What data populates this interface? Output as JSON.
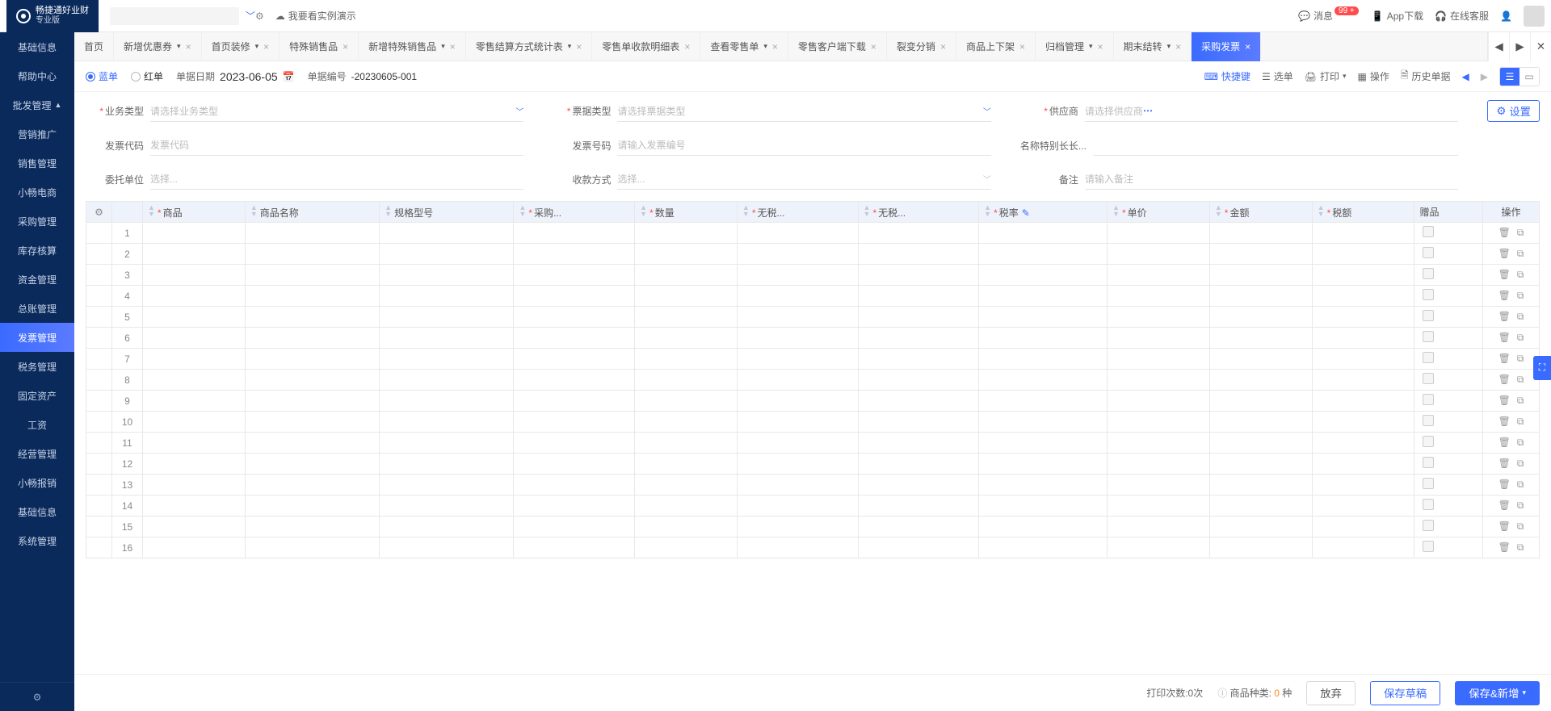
{
  "brand": {
    "name": "畅捷通好业财",
    "edition": "专业版"
  },
  "header": {
    "demo": "我要看实例演示",
    "msg": "消息",
    "msg_badge": "99 +",
    "app": "App下载",
    "cs": "在线客服"
  },
  "sidebar": {
    "items": [
      {
        "label": "基础信息"
      },
      {
        "label": "帮助中心"
      },
      {
        "label": "批发管理",
        "expanded": true
      },
      {
        "label": "营销推广"
      },
      {
        "label": "销售管理"
      },
      {
        "label": "小畅电商"
      },
      {
        "label": "采购管理"
      },
      {
        "label": "库存核算"
      },
      {
        "label": "资金管理"
      },
      {
        "label": "总账管理"
      },
      {
        "label": "发票管理",
        "active": true
      },
      {
        "label": "税务管理"
      },
      {
        "label": "固定资产"
      },
      {
        "label": "工资"
      },
      {
        "label": "经营管理"
      },
      {
        "label": "小畅报销"
      },
      {
        "label": "基础信息"
      },
      {
        "label": "系统管理"
      }
    ]
  },
  "tabs": {
    "items": [
      {
        "label": "首页",
        "closable": false,
        "drop": false
      },
      {
        "label": "新增优惠券",
        "closable": true,
        "drop": true
      },
      {
        "label": "首页装修",
        "closable": true,
        "drop": true
      },
      {
        "label": "特殊销售品",
        "closable": true,
        "drop": false
      },
      {
        "label": "新增特殊销售品",
        "closable": true,
        "drop": true
      },
      {
        "label": "零售结算方式统计表",
        "closable": true,
        "drop": true
      },
      {
        "label": "零售单收款明细表",
        "closable": true,
        "drop": false
      },
      {
        "label": "查看零售单",
        "closable": true,
        "drop": true
      },
      {
        "label": "零售客户端下载",
        "closable": true,
        "drop": false
      },
      {
        "label": "裂变分销",
        "closable": true,
        "drop": false
      },
      {
        "label": "商品上下架",
        "closable": true,
        "drop": false
      },
      {
        "label": "归档管理",
        "closable": true,
        "drop": true
      },
      {
        "label": "期末结转",
        "closable": true,
        "drop": true
      },
      {
        "label": "采购发票",
        "closable": true,
        "drop": false,
        "active": true
      }
    ]
  },
  "formbar": {
    "blue": "蓝单",
    "red": "红单",
    "doc_date_label": "单据日期",
    "doc_date": "2023-06-05",
    "doc_no_label": "单据编号",
    "doc_no": "-20230605-001",
    "shortcut": "快捷键",
    "select": "选单",
    "print": "打印",
    "ops": "操作",
    "history": "历史单据"
  },
  "fields": {
    "biz_type": {
      "label": "业务类型",
      "ph": "请选择业务类型",
      "req": true
    },
    "bill_type": {
      "label": "票据类型",
      "ph": "请选择票据类型",
      "req": true
    },
    "supplier": {
      "label": "供应商",
      "ph": "请选择供应商",
      "req": true
    },
    "setting": "设置",
    "inv_code": {
      "label": "发票代码",
      "ph": "发票代码"
    },
    "inv_no": {
      "label": "发票号码",
      "ph": "请输入发票编号"
    },
    "long_name": {
      "label": "名称特别长长..."
    },
    "entrust": {
      "label": "委托单位",
      "ph": "选择..."
    },
    "recv": {
      "label": "收款方式",
      "ph": "选择..."
    },
    "remark": {
      "label": "备注",
      "ph": "请输入备注"
    }
  },
  "table": {
    "columns": [
      {
        "label": "商品",
        "req": true,
        "sort": true
      },
      {
        "label": "商品名称",
        "sort": true
      },
      {
        "label": "规格型号",
        "sort": true
      },
      {
        "label": "采购...",
        "req": true,
        "sort": true
      },
      {
        "label": "数量",
        "req": true,
        "sort": true
      },
      {
        "label": "无税...",
        "req": true,
        "sort": true
      },
      {
        "label": "无税...",
        "req": true,
        "sort": true
      },
      {
        "label": "税率",
        "req": true,
        "sort": true,
        "editable": true
      },
      {
        "label": "单价",
        "req": true,
        "sort": true
      },
      {
        "label": "金额",
        "req": true,
        "sort": true
      },
      {
        "label": "税额",
        "req": true,
        "sort": true
      },
      {
        "label": "赠品",
        "gift": true
      }
    ],
    "opcol": "操作",
    "rows": 16
  },
  "footer": {
    "print_times": "打印次数:0次",
    "goods_kinds_label": "商品种类:",
    "goods_kinds_val": "0",
    "goods_kinds_unit": " 种",
    "abandon": "放弃",
    "draft": "保存草稿",
    "save_new": "保存&新增"
  }
}
